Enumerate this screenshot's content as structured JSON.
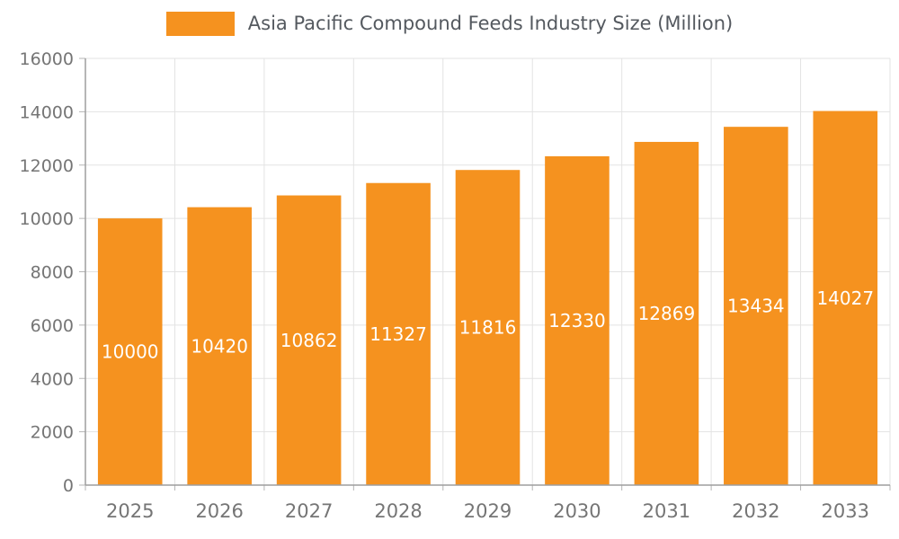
{
  "chart_data": {
    "type": "bar",
    "title": "Asia Pacific Compound Feeds Industry Size (Million)",
    "categories": [
      "2025",
      "2026",
      "2027",
      "2028",
      "2029",
      "2030",
      "2031",
      "2032",
      "2033"
    ],
    "values": [
      10000,
      10420,
      10862,
      11327,
      11816,
      12330,
      12869,
      13434,
      14027
    ],
    "xlabel": "",
    "ylabel": "",
    "ylim": [
      0,
      16000
    ],
    "ytick_step": 2000,
    "grid": true,
    "legend_position": "top",
    "colors": {
      "bar": "#F5921F",
      "bar_value_label": "#FFFFFF",
      "axis_text": "#757575",
      "title_text": "#54595F",
      "gridline": "#E3E3E3",
      "axis_line": "#9E9E9E",
      "tick_mark": "#B5B5B5",
      "background": "#FFFFFF"
    }
  }
}
